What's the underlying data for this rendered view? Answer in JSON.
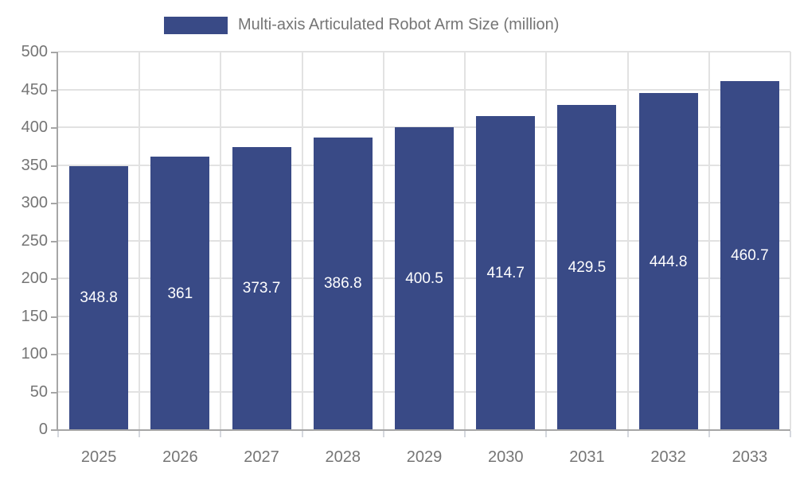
{
  "legend": {
    "label": "Multi-axis Articulated Robot Arm Size (million)"
  },
  "chart_data": {
    "type": "bar",
    "title": "Multi-axis Articulated Robot Arm Size (million)",
    "categories": [
      "2025",
      "2026",
      "2027",
      "2028",
      "2029",
      "2030",
      "2031",
      "2032",
      "2033"
    ],
    "values": [
      348.8,
      361,
      373.7,
      386.8,
      400.5,
      414.7,
      429.5,
      444.8,
      460.7
    ],
    "value_labels": [
      "348.8",
      "361",
      "373.7",
      "386.8",
      "400.5",
      "414.7",
      "429.5",
      "444.8",
      "460.7"
    ],
    "xlabel": "",
    "ylabel": "",
    "ylim": [
      0,
      500
    ],
    "ytick_step": 50,
    "ytick_labels": [
      "0",
      "50",
      "100",
      "150",
      "200",
      "250",
      "300",
      "350",
      "400",
      "450",
      "500"
    ],
    "grid": true,
    "legend_position": "top",
    "colors": {
      "bar_fill": "#394A86",
      "value_label_text": "#ffffff",
      "axis_text": "#757575",
      "axis_line": "#a6a6a6",
      "gridline": "#e2e2e2"
    }
  }
}
